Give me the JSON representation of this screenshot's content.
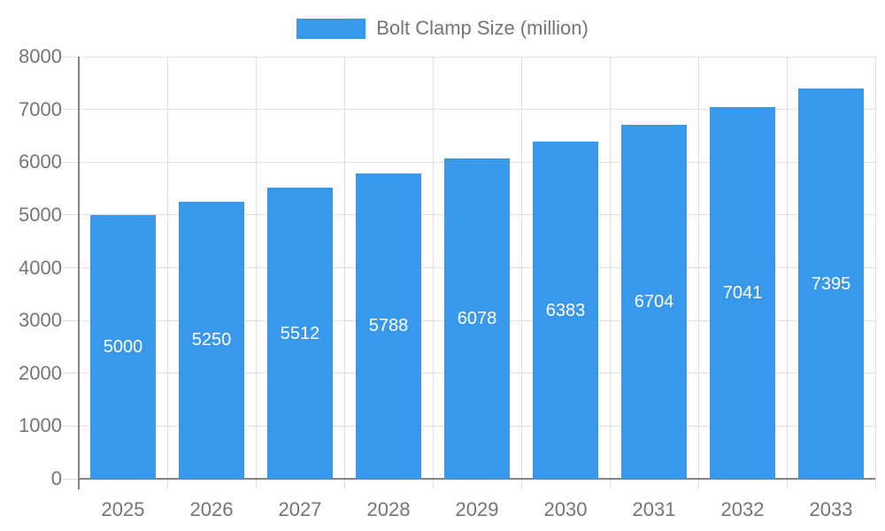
{
  "legend": {
    "label": "Bolt Clamp Size (million)"
  },
  "chart_data": {
    "type": "bar",
    "title": "",
    "xlabel": "",
    "ylabel": "",
    "categories": [
      "2025",
      "2026",
      "2027",
      "2028",
      "2029",
      "2030",
      "2031",
      "2032",
      "2033"
    ],
    "series": [
      {
        "name": "Bolt Clamp Size (million)",
        "values": [
          5000,
          5250,
          5512,
          5788,
          6078,
          6383,
          6704,
          7041,
          7395
        ]
      }
    ],
    "bar_value_labels": [
      "5000",
      "5250",
      "5512",
      "5788",
      "6078",
      "6383",
      "6704",
      "7041",
      "7395"
    ],
    "ylim": [
      0,
      8000
    ],
    "ytick_step": 1000,
    "ytick_labels": [
      "0",
      "1000",
      "2000",
      "3000",
      "4000",
      "5000",
      "6000",
      "7000",
      "8000"
    ],
    "grid": true,
    "legend_position": "top-center",
    "colors": {
      "bar": "#3899EC",
      "bar_label_text": "#FFFFFF",
      "grid_line": "#E0E0E0",
      "axis_line": "#848484",
      "tick_label": "#757575",
      "legend_text": "#757575"
    }
  }
}
